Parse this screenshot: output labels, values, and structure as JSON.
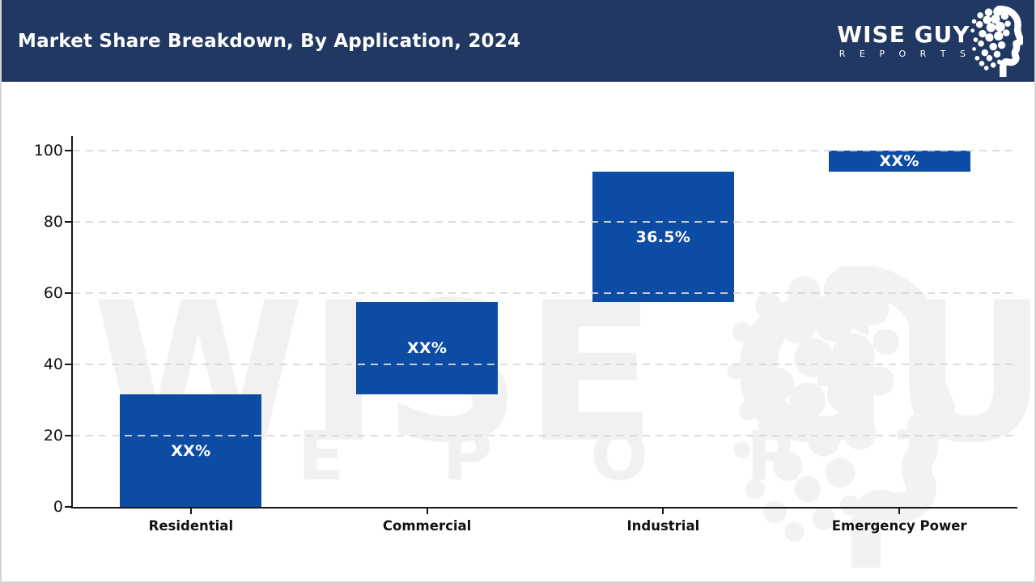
{
  "header": {
    "title": "Market Share Breakdown, By Application, 2024",
    "bg_color": "#213863",
    "logo": {
      "line1": "WISE GUY",
      "line2": "R E P O R T S"
    }
  },
  "watermark": {
    "line1": "WISE GUY",
    "line2": "R E P O R T S"
  },
  "chart_data": {
    "type": "bar",
    "subtype": "waterfall-segments",
    "title": "Market Share Breakdown, By Application, 2024",
    "categories": [
      "Residential",
      "Commercial",
      "Industrial",
      "Emergency Power"
    ],
    "segments": [
      {
        "category": "Residential",
        "start": 0,
        "end": 31.5,
        "label": "XX%"
      },
      {
        "category": "Commercial",
        "start": 31.5,
        "end": 57.5,
        "label": "XX%"
      },
      {
        "category": "Industrial",
        "start": 57.5,
        "end": 94,
        "label": "36.5%"
      },
      {
        "category": "Emergency Power",
        "start": 94,
        "end": 100,
        "label": "XX%"
      }
    ],
    "xlabel": "",
    "ylabel": "",
    "ylim": [
      0,
      100
    ],
    "yticks": [
      0,
      20,
      40,
      60,
      80,
      100
    ],
    "grid": true,
    "grid_style": "dashed",
    "legend": false,
    "bar_color": "#0D4CA4",
    "value_label_color": "#FFFFFF"
  }
}
